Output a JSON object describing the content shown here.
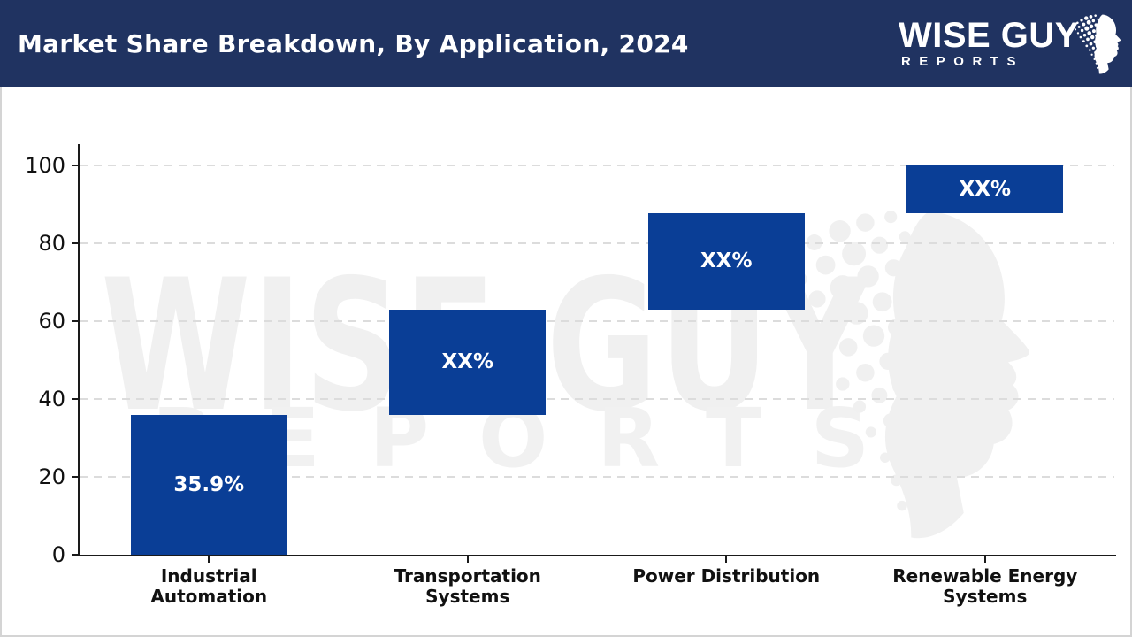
{
  "header": {
    "title": "Market Share Breakdown, By Application, 2024",
    "bg_color": "#203361",
    "logo": {
      "word1": "WISE GUY",
      "word2": "REPORTS"
    }
  },
  "watermark": {
    "word1": "WISE GUY",
    "word2": "REPORTS"
  },
  "chart_data": {
    "type": "bar",
    "variant": "waterfall",
    "title": "Market Share Breakdown, By Application, 2024",
    "categories": [
      "Industrial\nAutomation",
      "Transportation\nSystems",
      "Power Distribution",
      "Renewable Energy\nSystems"
    ],
    "segments": [
      [
        0,
        35.9
      ],
      [
        35.9,
        63.0
      ],
      [
        63.0,
        87.7
      ],
      [
        87.7,
        100.0
      ]
    ],
    "segment_sizes": [
      35.9,
      27.1,
      24.7,
      12.3
    ],
    "bar_labels": [
      "35.9%",
      "XX%",
      "XX%",
      "XX%"
    ],
    "xlabel": "",
    "ylabel": "",
    "ylim": [
      0,
      100
    ],
    "yticks": [
      0,
      20,
      40,
      60,
      80,
      100
    ],
    "grid": "horizontal-dashed",
    "legend": "none",
    "bar_color": "#0a3e96",
    "axis_color": "#1a1a1a",
    "gridline_color": "#dcdcdc"
  }
}
